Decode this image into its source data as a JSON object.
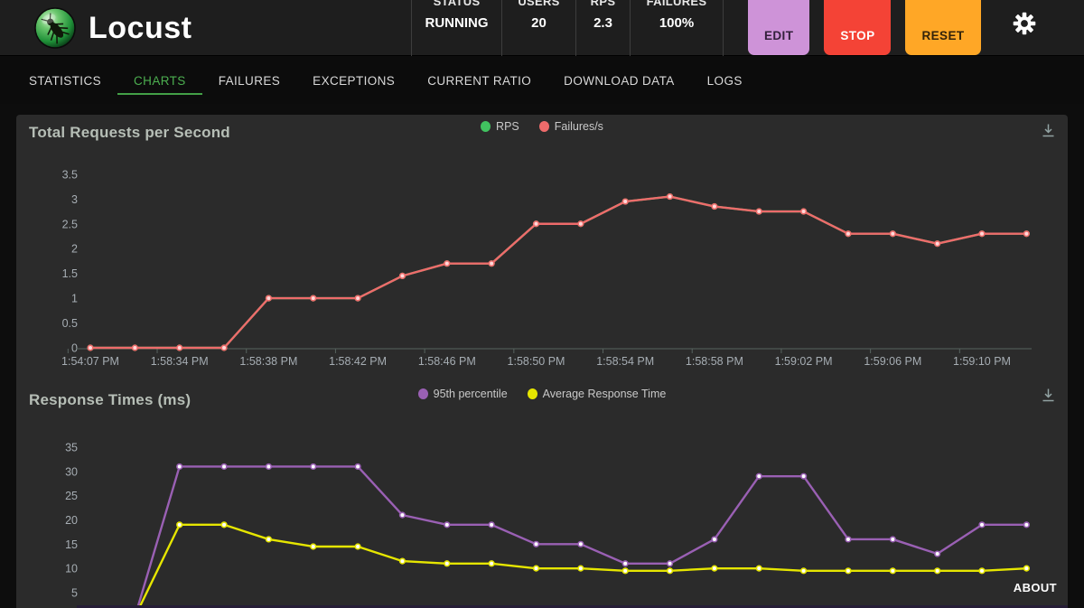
{
  "header": {
    "brand": "Locust",
    "stats": [
      {
        "label": "STATUS",
        "value": "RUNNING"
      },
      {
        "label": "USERS",
        "value": "20"
      },
      {
        "label": "RPS",
        "value": "2.3"
      },
      {
        "label": "FAILURES",
        "value": "100%"
      }
    ],
    "buttons": [
      {
        "label": "EDIT",
        "bg": "#ce93d8",
        "fg": "#33203b"
      },
      {
        "label": "STOP",
        "bg": "#f44336",
        "fg": "#ffffff"
      },
      {
        "label": "RESET",
        "bg": "#ffa726",
        "fg": "#33230a"
      }
    ]
  },
  "nav": {
    "tabs": [
      {
        "label": "STATISTICS",
        "active": false
      },
      {
        "label": "CHARTS",
        "active": true
      },
      {
        "label": "FAILURES",
        "active": false
      },
      {
        "label": "EXCEPTIONS",
        "active": false
      },
      {
        "label": "CURRENT RATIO",
        "active": false
      },
      {
        "label": "DOWNLOAD DATA",
        "active": false
      },
      {
        "label": "LOGS",
        "active": false
      }
    ],
    "active_color": "#4caf50"
  },
  "footer": {
    "about_label": "ABOUT"
  },
  "chart_data": [
    {
      "type": "line",
      "title": "Total Requests per Second",
      "x": [
        "1:54:07 PM",
        "1:58:32 PM",
        "1:58:34 PM",
        "1:58:36 PM",
        "1:58:38 PM",
        "1:58:40 PM",
        "1:58:42 PM",
        "1:58:44 PM",
        "1:58:46 PM",
        "1:58:48 PM",
        "1:58:50 PM",
        "1:58:52 PM",
        "1:58:54 PM",
        "1:58:56 PM",
        "1:58:58 PM",
        "1:59:00 PM",
        "1:59:02 PM",
        "1:59:04 PM",
        "1:59:06 PM",
        "1:59:08 PM",
        "1:59:10 PM",
        "1:59:12 PM"
      ],
      "x_labels_shown": [
        "1:54:07 PM",
        "1:58:34 PM",
        "1:58:38 PM",
        "1:58:42 PM",
        "1:58:46 PM",
        "1:58:50 PM",
        "1:58:54 PM",
        "1:58:58 PM",
        "1:59:02 PM",
        "1:59:06 PM",
        "1:59:10 PM"
      ],
      "series": [
        {
          "name": "RPS",
          "color": "#41c360",
          "values": [
            0,
            0,
            0,
            0,
            1,
            1,
            1,
            1.45,
            1.7,
            1.7,
            2.5,
            2.5,
            2.95,
            3.05,
            2.85,
            2.75,
            2.75,
            2.3,
            2.3,
            2.1,
            2.3,
            2.3
          ]
        },
        {
          "name": "Failures/s",
          "color": "#ee6b6b",
          "values": [
            0,
            0,
            0,
            0,
            1,
            1,
            1,
            1.45,
            1.7,
            1.7,
            2.5,
            2.5,
            2.95,
            3.05,
            2.85,
            2.75,
            2.75,
            2.3,
            2.3,
            2.1,
            2.3,
            2.3
          ]
        }
      ],
      "note": "RPS line coincides with Failures/s (100% failure rate), so only the red line is visible",
      "ylim": [
        0,
        3.5
      ],
      "yticks": [
        0,
        0.5,
        1,
        1.5,
        2,
        2.5,
        3,
        3.5
      ],
      "grid": false,
      "legend_position": "top-center"
    },
    {
      "type": "line",
      "title": "Response Times (ms)",
      "x": [
        "1:54:07 PM",
        "1:58:32 PM",
        "1:58:34 PM",
        "1:58:36 PM",
        "1:58:38 PM",
        "1:58:40 PM",
        "1:58:42 PM",
        "1:58:44 PM",
        "1:58:46 PM",
        "1:58:48 PM",
        "1:58:50 PM",
        "1:58:52 PM",
        "1:58:54 PM",
        "1:58:56 PM",
        "1:58:58 PM",
        "1:59:00 PM",
        "1:59:02 PM",
        "1:59:04 PM",
        "1:59:06 PM",
        "1:59:08 PM",
        "1:59:10 PM",
        "1:59:12 PM"
      ],
      "series": [
        {
          "name": "95th percentile",
          "color": "#9a60b4",
          "values": [
            0,
            0,
            31,
            31,
            31,
            31,
            31,
            21,
            19,
            19,
            15,
            15,
            11,
            11,
            16,
            29,
            29,
            16,
            16,
            13,
            19,
            19
          ]
        },
        {
          "name": "Average Response Time",
          "color": "#e6e600",
          "values": [
            0,
            0,
            19,
            19,
            16,
            14.5,
            14.5,
            11.5,
            11,
            11,
            10,
            10,
            9.5,
            9.5,
            10,
            10,
            9.5,
            9.5,
            9.5,
            9.5,
            9.5,
            10
          ]
        }
      ],
      "ylim": [
        0,
        35
      ],
      "yticks": [
        5,
        10,
        15,
        20,
        25,
        30,
        35
      ],
      "grid": false,
      "legend_position": "top-center",
      "x_axis_visible": false
    }
  ]
}
